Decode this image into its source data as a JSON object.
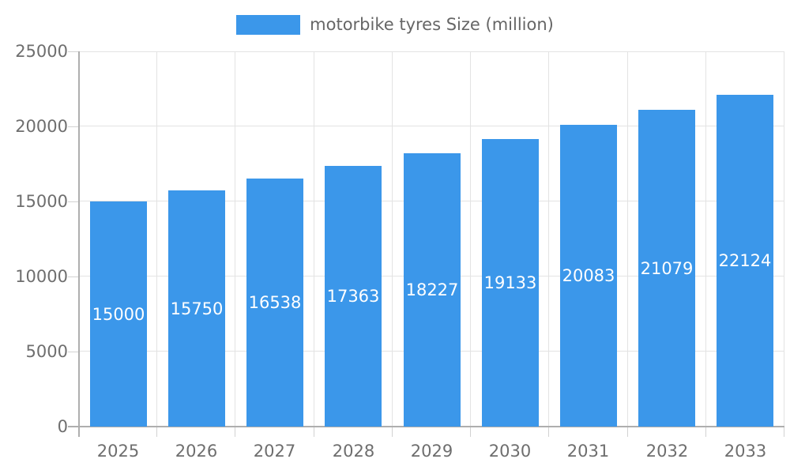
{
  "legend": {
    "label": "motorbike tyres Size (million)",
    "position": "top center"
  },
  "colors": {
    "bar": "#3b97ea",
    "grid": "#e3e3e3",
    "axis": "#aeaeae",
    "tick": "#d2d2d2",
    "axis_label_text": "#6e6e6e",
    "legend_text": "#666666",
    "bar_label_text": "#ffffff",
    "background": "#ffffff"
  },
  "chart_data": {
    "type": "bar",
    "title": "",
    "categories": [
      "2025",
      "2026",
      "2027",
      "2028",
      "2029",
      "2030",
      "2031",
      "2032",
      "2033"
    ],
    "series": [
      {
        "name": "motorbike tyres Size (million)",
        "values": [
          15000,
          15750,
          16538,
          17363,
          18227,
          19133,
          20083,
          21079,
          22124
        ]
      }
    ],
    "value_labels": [
      "15000",
      "15750",
      "16538",
      "17363",
      "18227",
      "19133",
      "20083",
      "21079",
      "22124"
    ],
    "value_label_position": "center of bar",
    "xlabel": "",
    "ylabel": "",
    "ylim": [
      0,
      25000
    ],
    "yticks": [
      0,
      5000,
      10000,
      15000,
      20000,
      25000
    ],
    "ytick_labels": [
      "0",
      "5000",
      "10000",
      "15000",
      "20000",
      "25000"
    ],
    "grid": true,
    "legend_position": "top"
  }
}
